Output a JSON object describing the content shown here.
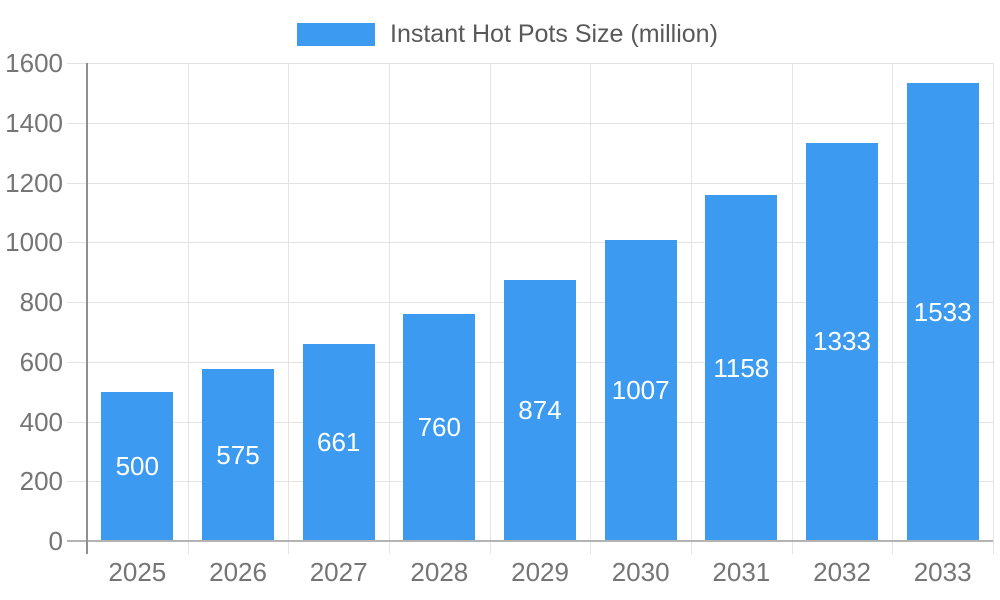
{
  "chart_data": {
    "type": "bar",
    "title": "",
    "legend": "Instant Hot Pots Size (million)",
    "legend_position": "top",
    "categories": [
      "2025",
      "2026",
      "2027",
      "2028",
      "2029",
      "2030",
      "2031",
      "2032",
      "2033"
    ],
    "values": [
      500,
      575,
      661,
      760,
      874,
      1007,
      1158,
      1333,
      1533
    ],
    "yticks": [
      0,
      200,
      400,
      600,
      800,
      1000,
      1200,
      1400,
      1600
    ],
    "ylim": [
      0,
      1600
    ],
    "xlabel": "",
    "ylabel": "",
    "grid": true,
    "value_labels": "centered-inside-bars",
    "colors": {
      "bar": "#3c9bf0",
      "bar_value_label": "#ffffff",
      "axis_tick_label": "#757575",
      "legend_label": "#595959",
      "gridline": "#e3e3e3",
      "x_axis_line": "#b3b3b3",
      "y_axis_line": "#8f8f8f"
    }
  }
}
